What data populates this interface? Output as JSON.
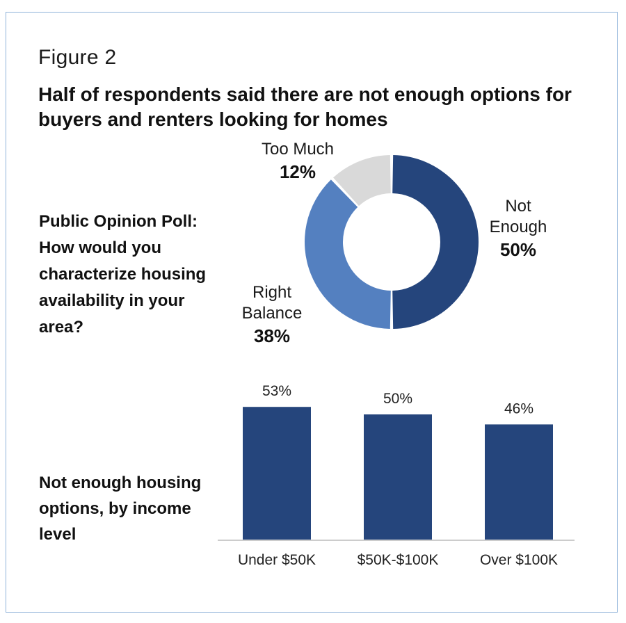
{
  "figure_label": "Figure 2",
  "headline": "Half of respondents said there are not enough options for buyers and renters looking for homes",
  "colors": {
    "border": "#8fb3d9",
    "dark_blue": "#25457c",
    "mid_blue": "#5480c0",
    "light_gray": "#d9d9d9",
    "axis": "#bbbbbb"
  },
  "chart_data": [
    {
      "type": "pie",
      "style": "donut",
      "title": "Public Opinion Poll: How would you characterize housing availability in your area?",
      "slices": [
        {
          "name": "Not Enough",
          "name_lines": [
            "Not",
            "Enough"
          ],
          "value": 50,
          "label": "50%",
          "color": "#25457c"
        },
        {
          "name": "Right Balance",
          "name_lines": [
            "Right",
            "Balance"
          ],
          "value": 38,
          "label": "38%",
          "color": "#5480c0"
        },
        {
          "name": "Too Much",
          "name_lines": [
            "Too Much"
          ],
          "value": 12,
          "label": "12%",
          "color": "#d9d9d9"
        }
      ]
    },
    {
      "type": "bar",
      "title": "Not enough housing options, by income level",
      "categories": [
        "Under $50K",
        "$50K-$100K",
        "Over $100K"
      ],
      "values": [
        53,
        50,
        46
      ],
      "value_labels": [
        "53%",
        "50%",
        "46%"
      ],
      "color": "#25457c",
      "ylim": [
        0,
        60
      ],
      "grid": false,
      "legend": "none"
    }
  ]
}
